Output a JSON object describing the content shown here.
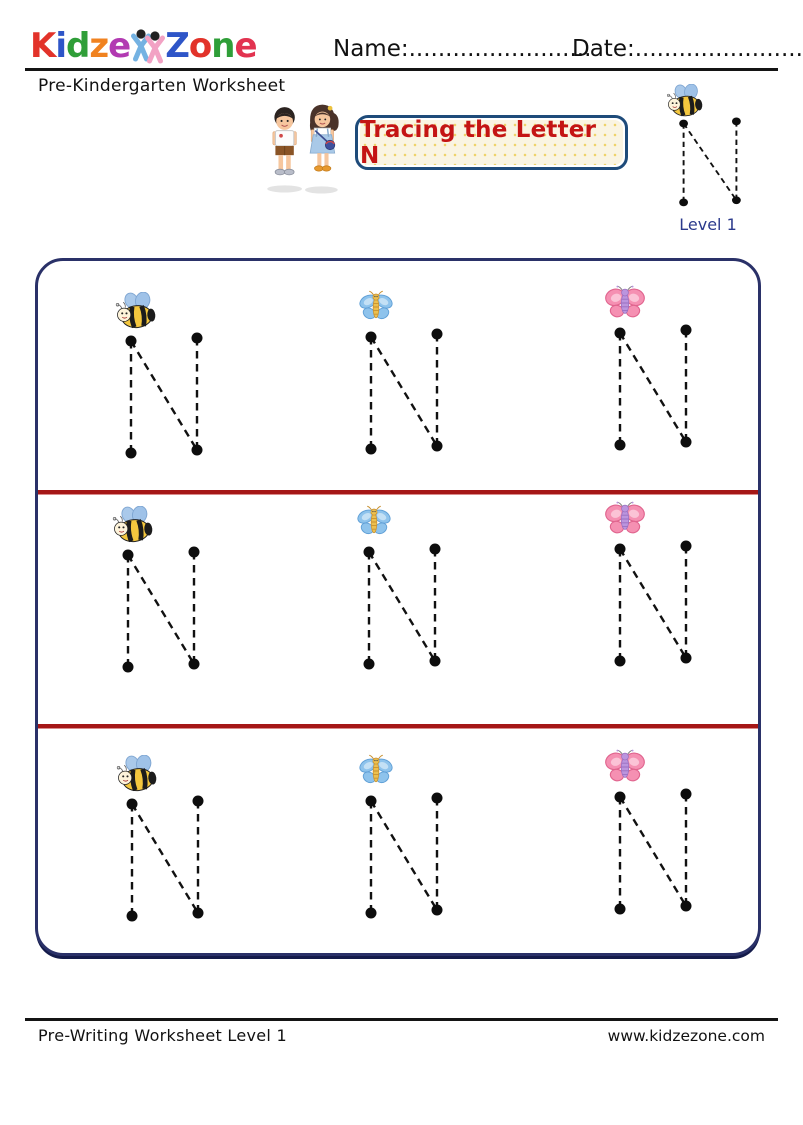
{
  "header": {
    "logo": {
      "text": "KidzeZone",
      "part1": [
        [
          "K",
          "#e2332a"
        ],
        [
          "i",
          "#2e55c8"
        ],
        [
          "d",
          "#2f9e38"
        ],
        [
          "z",
          "#f08220"
        ],
        [
          "e",
          "#b23ab2"
        ]
      ],
      "part2": [
        [
          "Z",
          "#2e55c8"
        ],
        [
          "o",
          "#e2332a"
        ],
        [
          "n",
          "#2f9e38"
        ],
        [
          "e",
          "#e23350"
        ]
      ]
    },
    "name_field": {
      "label": "Name:",
      "dots": "........................."
    },
    "date_field": {
      "label": "Date:",
      "dots": "......................."
    },
    "subtitle": "Pre-Kindergarten Worksheet"
  },
  "banner": {
    "title": "Tracing the Letter N"
  },
  "sample": {
    "letter": "N",
    "insect": "bee",
    "level_label": "Level 1"
  },
  "grid": {
    "rows": [
      {
        "cells": [
          {
            "insect": "bee",
            "letter": "N"
          },
          {
            "insect": "dragonfly",
            "letter": "N"
          },
          {
            "insect": "butterfly",
            "letter": "N"
          }
        ]
      },
      {
        "cells": [
          {
            "insect": "bee",
            "letter": "N"
          },
          {
            "insect": "dragonfly",
            "letter": "N"
          },
          {
            "insect": "butterfly",
            "letter": "N"
          }
        ]
      },
      {
        "cells": [
          {
            "insect": "bee",
            "letter": "N"
          },
          {
            "insect": "dragonfly",
            "letter": "N"
          },
          {
            "insect": "butterfly",
            "letter": "N"
          }
        ]
      }
    ]
  },
  "footer": {
    "left_text": "Pre-Writing Worksheet Level 1",
    "right_text": "www.kidzezone.com"
  },
  "colors": {
    "banner_text": "#c41414",
    "banner_border": "#1e4b7a",
    "box_border": "#2a3168",
    "divider": "#a51717",
    "level_text": "#2b3a8c",
    "trace_ink": "#111111"
  }
}
